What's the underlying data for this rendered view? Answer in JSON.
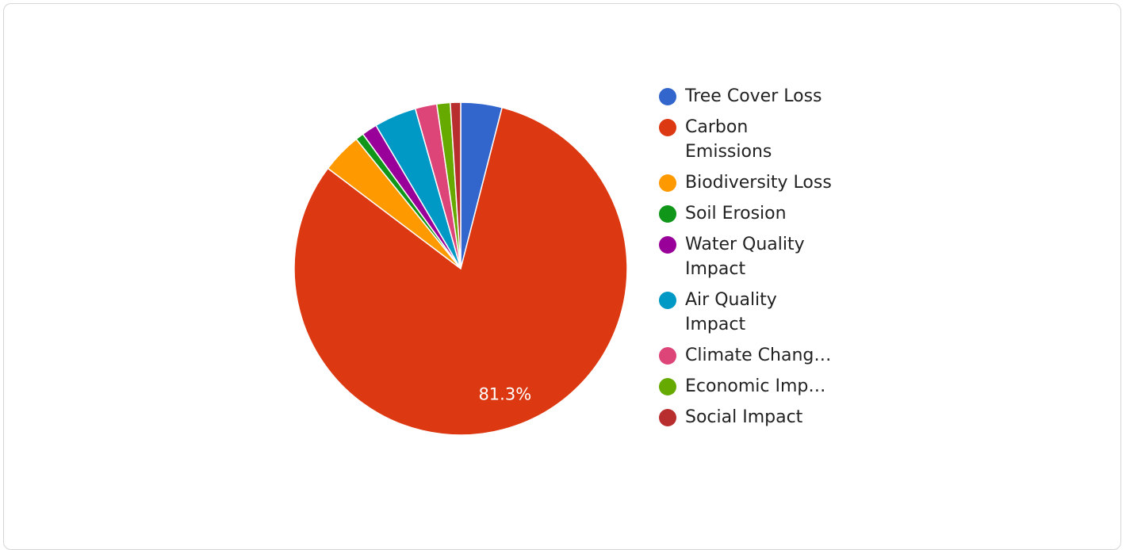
{
  "chart_data": {
    "type": "pie",
    "categories": [
      "Tree Cover Loss",
      "Carbon Emissions",
      "Biodiversity Loss",
      "Soil Erosion",
      "Water Quality Impact",
      "Air Quality Impact",
      "Climate Change Impact",
      "Economic Impact",
      "Social Impact"
    ],
    "legend_labels": [
      [
        "Tree Cover Loss"
      ],
      [
        "Carbon",
        "Emissions"
      ],
      [
        "Biodiversity Loss"
      ],
      [
        "Soil Erosion"
      ],
      [
        "Water Quality",
        "Impact"
      ],
      [
        "Air Quality",
        "Impact"
      ],
      [
        "Climate Chang…"
      ],
      [
        "Economic Imp…"
      ],
      [
        "Social Impact"
      ]
    ],
    "values": [
      4.0,
      81.3,
      3.9,
      0.8,
      1.5,
      4.1,
      2.1,
      1.3,
      1.0
    ],
    "colors": [
      "#3366cc",
      "#dc3912",
      "#ff9900",
      "#109618",
      "#990099",
      "#0099c6",
      "#dd4477",
      "#66aa00",
      "#b82e2e"
    ],
    "slice_labels": [
      "",
      "81.3%",
      "",
      "",
      "",
      "",
      "",
      "",
      ""
    ],
    "legend_position": "right",
    "title": ""
  }
}
